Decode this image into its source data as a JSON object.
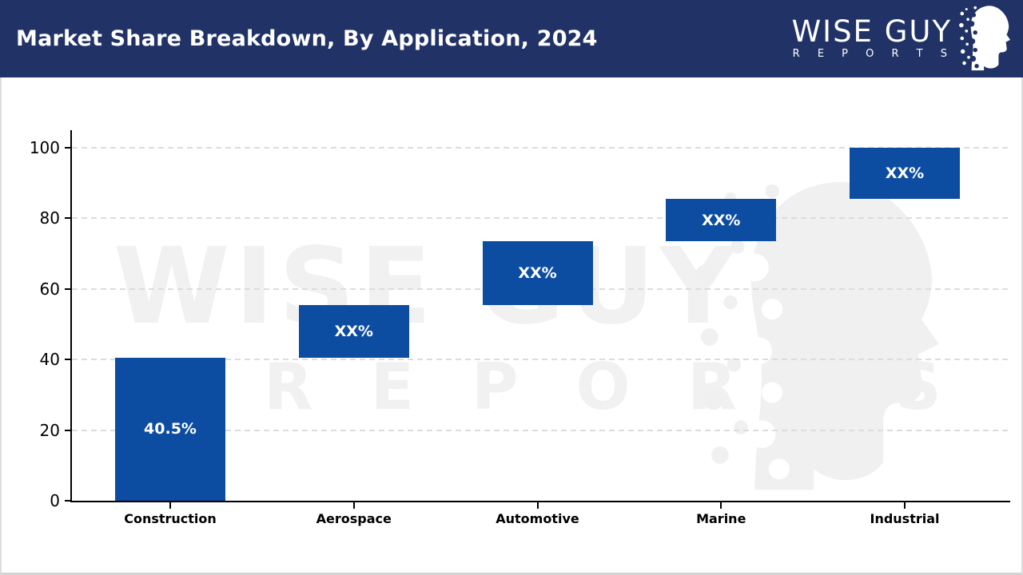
{
  "header": {
    "title": "Market Share Breakdown, By Application, 2024",
    "bg_color": "#213266",
    "logo": {
      "line1": "WISE GUY",
      "line2": "R E P O R T S"
    }
  },
  "watermark": {
    "line1": "WISE GUY",
    "line2": "R E P O R T S"
  },
  "chart_data": {
    "type": "bar",
    "subtype": "waterfall",
    "title": "Market Share Breakdown, By Application, 2024",
    "categories": [
      "Construction",
      "Aerospace",
      "Automotive",
      "Marine",
      "Industrial"
    ],
    "segments": [
      {
        "category": "Construction",
        "start": 0,
        "end": 40.5,
        "value": 40.5,
        "label": "40.5%"
      },
      {
        "category": "Aerospace",
        "start": 40.5,
        "end": 55.5,
        "value": 15,
        "label": "XX%"
      },
      {
        "category": "Automotive",
        "start": 55.5,
        "end": 73.5,
        "value": 18,
        "label": "XX%"
      },
      {
        "category": "Marine",
        "start": 73.5,
        "end": 85.5,
        "value": 12,
        "label": "XX%"
      },
      {
        "category": "Industrial",
        "start": 85.5,
        "end": 100,
        "value": 14.5,
        "label": "XX%"
      }
    ],
    "yticks": [
      0,
      20,
      40,
      60,
      80,
      100
    ],
    "ylim": [
      0,
      105
    ],
    "xlabel": "",
    "ylabel": "",
    "grid": "horizontal-dashed",
    "legend": "none",
    "bar_color": "#0c4da2",
    "bar_label_color": "#ffffff",
    "axis_color": "#000000"
  }
}
